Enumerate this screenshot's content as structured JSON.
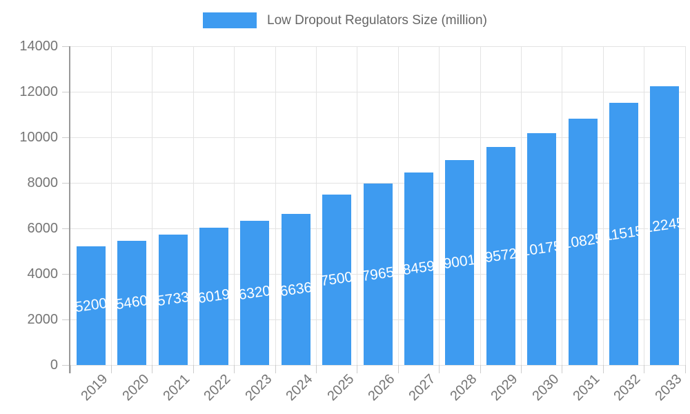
{
  "legend": {
    "label": "Low Dropout Regulators Size (million)",
    "swatch_color": "#3e9bf0"
  },
  "chart_data": {
    "type": "bar",
    "title": "Low Dropout Regulators Size (million)",
    "categories": [
      "2019",
      "2020",
      "2021",
      "2022",
      "2023",
      "2024",
      "2025",
      "2026",
      "2027",
      "2028",
      "2029",
      "2030",
      "2031",
      "2032",
      "2033"
    ],
    "values": [
      5200,
      5460,
      5733,
      6019,
      6320,
      6636,
      7500,
      7965,
      8459,
      9001,
      9572,
      10175,
      10825,
      11515,
      12245
    ],
    "series": [
      {
        "name": "Low Dropout Regulators Size (million)",
        "values": [
          5200,
          5460,
          5733,
          6019,
          6320,
          6636,
          7500,
          7965,
          8459,
          9001,
          9572,
          10175,
          10825,
          11515,
          12245
        ]
      }
    ],
    "xlabel": "",
    "ylabel": "",
    "ylim": [
      0,
      14000
    ],
    "yticks": [
      0,
      2000,
      4000,
      6000,
      8000,
      10000,
      12000,
      14000
    ],
    "grid": true,
    "legend_position": "top",
    "xtick_rotation": -45,
    "value_labels": "inside-middle-white"
  },
  "colors": {
    "bar": "#3e9bf0",
    "grid": "#e3e3e3",
    "axis_line": "#999999",
    "tick": "#cccccc",
    "axis_text": "#757575",
    "legend_text": "#666666",
    "value_label": "#ffffff",
    "background": "#ffffff"
  }
}
